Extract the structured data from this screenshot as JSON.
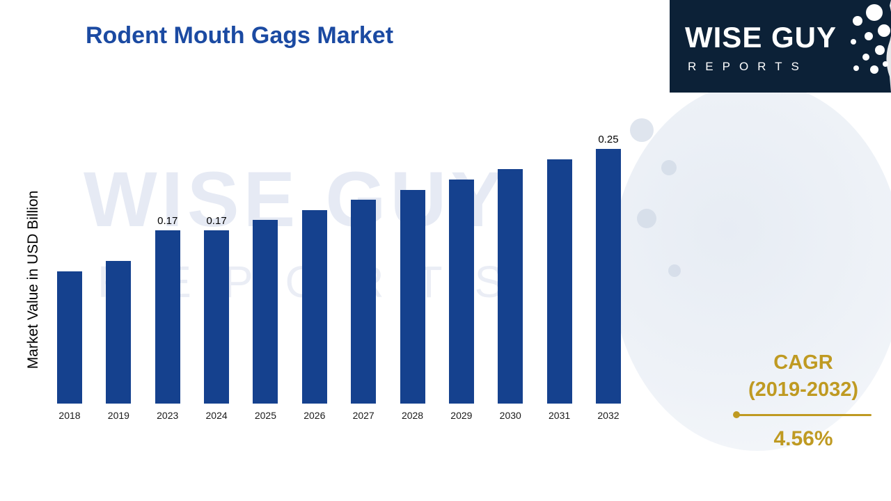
{
  "title": "Rodent Mouth Gags Market",
  "ylabel": "Market Value in USD Billion",
  "logo": {
    "line1": "WISE GUY",
    "line2": "REPORTS"
  },
  "watermark": {
    "line1": "WISE GUY",
    "line2": "REPORTS"
  },
  "cagr": {
    "label": "CAGR",
    "range": "(2019-2032)",
    "value": "4.56%"
  },
  "colors": {
    "bar": "#15418e",
    "title": "#1b4aa2",
    "logo_bg": "#0c2137",
    "accent_gold": "#bf9a22"
  },
  "chart_data": {
    "type": "bar",
    "title": "Rodent Mouth Gags Market",
    "xlabel": "",
    "ylabel": "Market Value in USD Billion",
    "categories": [
      "2018",
      "2019",
      "2023",
      "2024",
      "2025",
      "2026",
      "2027",
      "2028",
      "2029",
      "2030",
      "2031",
      "2032"
    ],
    "values": [
      0.13,
      0.14,
      0.17,
      0.17,
      0.18,
      0.19,
      0.2,
      0.21,
      0.22,
      0.23,
      0.24,
      0.25
    ],
    "bar_labels": [
      "",
      "",
      "0.17",
      "0.17",
      "",
      "",
      "",
      "",
      "",
      "",
      "",
      "0.25"
    ],
    "ylim": [
      0,
      0.27
    ],
    "grid": false,
    "legend": "none"
  }
}
